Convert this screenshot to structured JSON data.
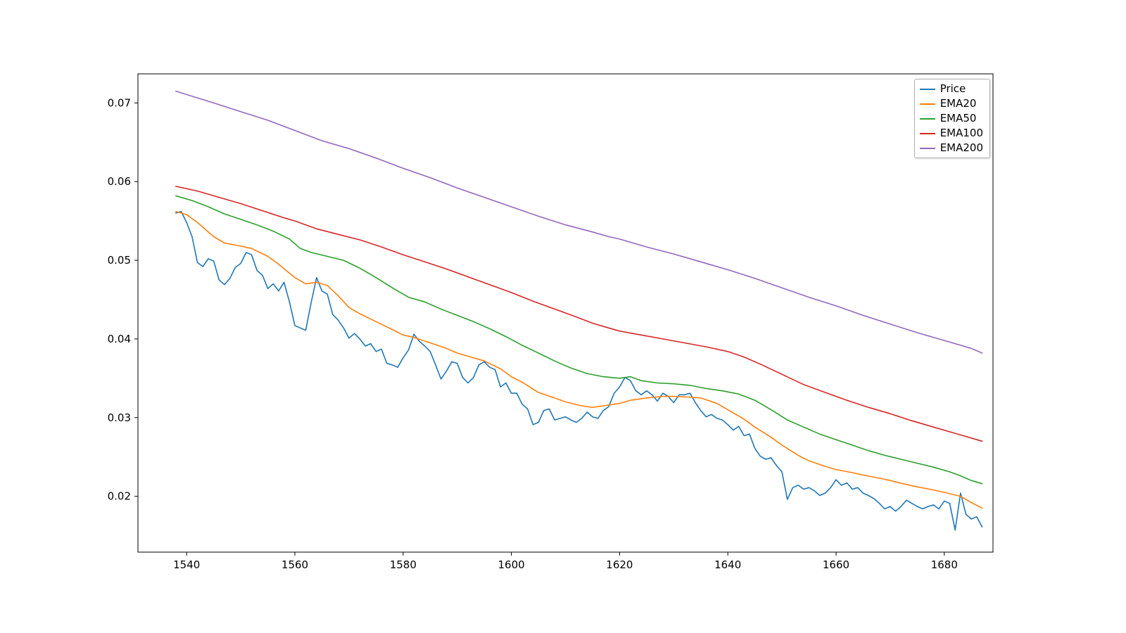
{
  "figure": {
    "background": "#ffffff"
  },
  "chart_data": {
    "type": "line",
    "title": "",
    "xlabel": "",
    "ylabel": "",
    "xlim": [
      1531,
      1689
    ],
    "ylim": [
      0.0129,
      0.0737
    ],
    "x_ticks": [
      1540,
      1560,
      1580,
      1600,
      1620,
      1640,
      1660,
      1680
    ],
    "y_ticks": [
      0.02,
      0.03,
      0.04,
      0.05,
      0.06,
      0.07
    ],
    "grid": false,
    "legend_position": "upper right",
    "series": [
      {
        "name": "Price",
        "color": "#1f77b4",
        "x_start": 1538,
        "step": 1,
        "values": [
          0.056,
          0.0562,
          0.0548,
          0.053,
          0.0497,
          0.0492,
          0.0502,
          0.0499,
          0.0475,
          0.0469,
          0.0477,
          0.0491,
          0.0496,
          0.051,
          0.0507,
          0.0487,
          0.0481,
          0.0464,
          0.047,
          0.0461,
          0.0472,
          0.0447,
          0.0417,
          0.0414,
          0.0411,
          0.0446,
          0.0478,
          0.0461,
          0.0457,
          0.0431,
          0.0424,
          0.0414,
          0.0401,
          0.0407,
          0.04,
          0.0391,
          0.0394,
          0.0384,
          0.0387,
          0.0369,
          0.0367,
          0.0364,
          0.0376,
          0.0386,
          0.0406,
          0.0397,
          0.0391,
          0.0384,
          0.0367,
          0.0349,
          0.0359,
          0.0371,
          0.0369,
          0.0351,
          0.0344,
          0.0351,
          0.0367,
          0.0371,
          0.0364,
          0.0361,
          0.0339,
          0.0344,
          0.0331,
          0.0331,
          0.0317,
          0.0311,
          0.0291,
          0.0294,
          0.0309,
          0.0311,
          0.0297,
          0.0299,
          0.0301,
          0.0297,
          0.0294,
          0.0299,
          0.0307,
          0.0301,
          0.0299,
          0.0309,
          0.0314,
          0.0331,
          0.0339,
          0.0351,
          0.0347,
          0.0334,
          0.0329,
          0.0334,
          0.0329,
          0.0321,
          0.0331,
          0.0327,
          0.0319,
          0.0329,
          0.0329,
          0.0331,
          0.0319,
          0.0309,
          0.0301,
          0.0304,
          0.0299,
          0.0297,
          0.0291,
          0.0284,
          0.0289,
          0.0277,
          0.0279,
          0.0261,
          0.0251,
          0.0247,
          0.0249,
          0.0239,
          0.0231,
          0.0196,
          0.0211,
          0.0214,
          0.0209,
          0.0211,
          0.0207,
          0.0201,
          0.0204,
          0.0211,
          0.0221,
          0.0214,
          0.0217,
          0.0209,
          0.0211,
          0.0204,
          0.0201,
          0.0197,
          0.0191,
          0.0184,
          0.0187,
          0.0181,
          0.0187,
          0.0195,
          0.0191,
          0.0187,
          0.0184,
          0.0187,
          0.0189,
          0.0184,
          0.0194,
          0.0191,
          0.0157,
          0.0204,
          0.0177,
          0.0171,
          0.0174,
          0.0161
        ]
      },
      {
        "name": "EMA20",
        "color": "#ff7f0e",
        "points": [
          [
            1538,
            0.0562
          ],
          [
            1540,
            0.0558
          ],
          [
            1542,
            0.0548
          ],
          [
            1545,
            0.053
          ],
          [
            1547,
            0.0522
          ],
          [
            1550,
            0.0518
          ],
          [
            1552,
            0.0515
          ],
          [
            1555,
            0.0505
          ],
          [
            1557,
            0.0495
          ],
          [
            1560,
            0.0478
          ],
          [
            1562,
            0.047
          ],
          [
            1564,
            0.0472
          ],
          [
            1566,
            0.0468
          ],
          [
            1568,
            0.0455
          ],
          [
            1570,
            0.044
          ],
          [
            1572,
            0.0432
          ],
          [
            1575,
            0.0422
          ],
          [
            1578,
            0.0412
          ],
          [
            1580,
            0.0405
          ],
          [
            1582,
            0.0402
          ],
          [
            1585,
            0.0395
          ],
          [
            1588,
            0.0388
          ],
          [
            1590,
            0.0382
          ],
          [
            1592,
            0.0378
          ],
          [
            1595,
            0.0372
          ],
          [
            1598,
            0.0362
          ],
          [
            1600,
            0.0352
          ],
          [
            1602,
            0.0345
          ],
          [
            1605,
            0.0332
          ],
          [
            1608,
            0.0325
          ],
          [
            1610,
            0.032
          ],
          [
            1613,
            0.0315
          ],
          [
            1615,
            0.0313
          ],
          [
            1617,
            0.0315
          ],
          [
            1620,
            0.0318
          ],
          [
            1622,
            0.0322
          ],
          [
            1625,
            0.0325
          ],
          [
            1628,
            0.0327
          ],
          [
            1630,
            0.0327
          ],
          [
            1633,
            0.0326
          ],
          [
            1635,
            0.0325
          ],
          [
            1638,
            0.0318
          ],
          [
            1640,
            0.031
          ],
          [
            1643,
            0.0298
          ],
          [
            1645,
            0.0288
          ],
          [
            1648,
            0.0275
          ],
          [
            1650,
            0.0265
          ],
          [
            1653,
            0.0252
          ],
          [
            1655,
            0.0245
          ],
          [
            1658,
            0.0238
          ],
          [
            1660,
            0.0234
          ],
          [
            1663,
            0.023
          ],
          [
            1665,
            0.0227
          ],
          [
            1668,
            0.0223
          ],
          [
            1670,
            0.022
          ],
          [
            1673,
            0.0215
          ],
          [
            1675,
            0.0212
          ],
          [
            1678,
            0.0208
          ],
          [
            1680,
            0.0205
          ],
          [
            1683,
            0.02
          ],
          [
            1685,
            0.0192
          ],
          [
            1687,
            0.0185
          ]
        ]
      },
      {
        "name": "EMA50",
        "color": "#2ca02c",
        "points": [
          [
            1538,
            0.0582
          ],
          [
            1541,
            0.0576
          ],
          [
            1544,
            0.0568
          ],
          [
            1547,
            0.0559
          ],
          [
            1550,
            0.0552
          ],
          [
            1553,
            0.0545
          ],
          [
            1556,
            0.0537
          ],
          [
            1559,
            0.0527
          ],
          [
            1561,
            0.0515
          ],
          [
            1563,
            0.051
          ],
          [
            1566,
            0.0505
          ],
          [
            1569,
            0.05
          ],
          [
            1572,
            0.049
          ],
          [
            1575,
            0.0478
          ],
          [
            1578,
            0.0465
          ],
          [
            1581,
            0.0453
          ],
          [
            1584,
            0.0447
          ],
          [
            1587,
            0.0438
          ],
          [
            1590,
            0.043
          ],
          [
            1593,
            0.0422
          ],
          [
            1596,
            0.0413
          ],
          [
            1599,
            0.0403
          ],
          [
            1602,
            0.0392
          ],
          [
            1605,
            0.0382
          ],
          [
            1608,
            0.0372
          ],
          [
            1611,
            0.0363
          ],
          [
            1614,
            0.0356
          ],
          [
            1617,
            0.0352
          ],
          [
            1620,
            0.035
          ],
          [
            1622,
            0.0352
          ],
          [
            1624,
            0.0347
          ],
          [
            1627,
            0.0344
          ],
          [
            1630,
            0.0343
          ],
          [
            1633,
            0.0341
          ],
          [
            1636,
            0.0337
          ],
          [
            1639,
            0.0334
          ],
          [
            1642,
            0.033
          ],
          [
            1645,
            0.0322
          ],
          [
            1648,
            0.031
          ],
          [
            1651,
            0.0297
          ],
          [
            1654,
            0.0288
          ],
          [
            1657,
            0.0279
          ],
          [
            1660,
            0.0272
          ],
          [
            1663,
            0.0265
          ],
          [
            1666,
            0.0258
          ],
          [
            1669,
            0.0252
          ],
          [
            1672,
            0.0247
          ],
          [
            1675,
            0.0242
          ],
          [
            1678,
            0.0237
          ],
          [
            1681,
            0.0231
          ],
          [
            1683,
            0.0226
          ],
          [
            1685,
            0.022
          ],
          [
            1687,
            0.0216
          ]
        ]
      },
      {
        "name": "EMA100",
        "color": "#d62728",
        "points": [
          [
            1538,
            0.0594
          ],
          [
            1542,
            0.0588
          ],
          [
            1546,
            0.058
          ],
          [
            1550,
            0.0572
          ],
          [
            1554,
            0.0563
          ],
          [
            1558,
            0.0554
          ],
          [
            1560,
            0.055
          ],
          [
            1562,
            0.0545
          ],
          [
            1564,
            0.054
          ],
          [
            1568,
            0.0533
          ],
          [
            1572,
            0.0526
          ],
          [
            1576,
            0.0517
          ],
          [
            1580,
            0.0507
          ],
          [
            1584,
            0.0498
          ],
          [
            1588,
            0.0489
          ],
          [
            1592,
            0.0479
          ],
          [
            1596,
            0.0469
          ],
          [
            1600,
            0.0459
          ],
          [
            1604,
            0.0448
          ],
          [
            1608,
            0.0438
          ],
          [
            1612,
            0.0428
          ],
          [
            1615,
            0.042
          ],
          [
            1618,
            0.0414
          ],
          [
            1620,
            0.041
          ],
          [
            1624,
            0.0405
          ],
          [
            1628,
            0.04
          ],
          [
            1632,
            0.0395
          ],
          [
            1636,
            0.039
          ],
          [
            1640,
            0.0384
          ],
          [
            1643,
            0.0377
          ],
          [
            1646,
            0.0368
          ],
          [
            1650,
            0.0355
          ],
          [
            1654,
            0.0342
          ],
          [
            1658,
            0.0332
          ],
          [
            1662,
            0.0322
          ],
          [
            1666,
            0.0313
          ],
          [
            1670,
            0.0305
          ],
          [
            1674,
            0.0296
          ],
          [
            1678,
            0.0288
          ],
          [
            1682,
            0.028
          ],
          [
            1687,
            0.027
          ]
        ]
      },
      {
        "name": "EMA200",
        "color": "#9467bd",
        "points": [
          [
            1538,
            0.0715
          ],
          [
            1545,
            0.07
          ],
          [
            1550,
            0.0689
          ],
          [
            1555,
            0.0678
          ],
          [
            1560,
            0.0665
          ],
          [
            1565,
            0.0652
          ],
          [
            1570,
            0.0642
          ],
          [
            1575,
            0.063
          ],
          [
            1580,
            0.0617
          ],
          [
            1585,
            0.0605
          ],
          [
            1590,
            0.0592
          ],
          [
            1595,
            0.058
          ],
          [
            1600,
            0.0568
          ],
          [
            1605,
            0.0556
          ],
          [
            1610,
            0.0545
          ],
          [
            1615,
            0.0536
          ],
          [
            1618,
            0.053
          ],
          [
            1620,
            0.0527
          ],
          [
            1625,
            0.0517
          ],
          [
            1630,
            0.0508
          ],
          [
            1635,
            0.0498
          ],
          [
            1640,
            0.0488
          ],
          [
            1645,
            0.0477
          ],
          [
            1650,
            0.0465
          ],
          [
            1655,
            0.0453
          ],
          [
            1660,
            0.0442
          ],
          [
            1665,
            0.043
          ],
          [
            1670,
            0.0419
          ],
          [
            1675,
            0.0408
          ],
          [
            1680,
            0.0398
          ],
          [
            1685,
            0.0388
          ],
          [
            1687,
            0.0382
          ]
        ]
      }
    ]
  }
}
